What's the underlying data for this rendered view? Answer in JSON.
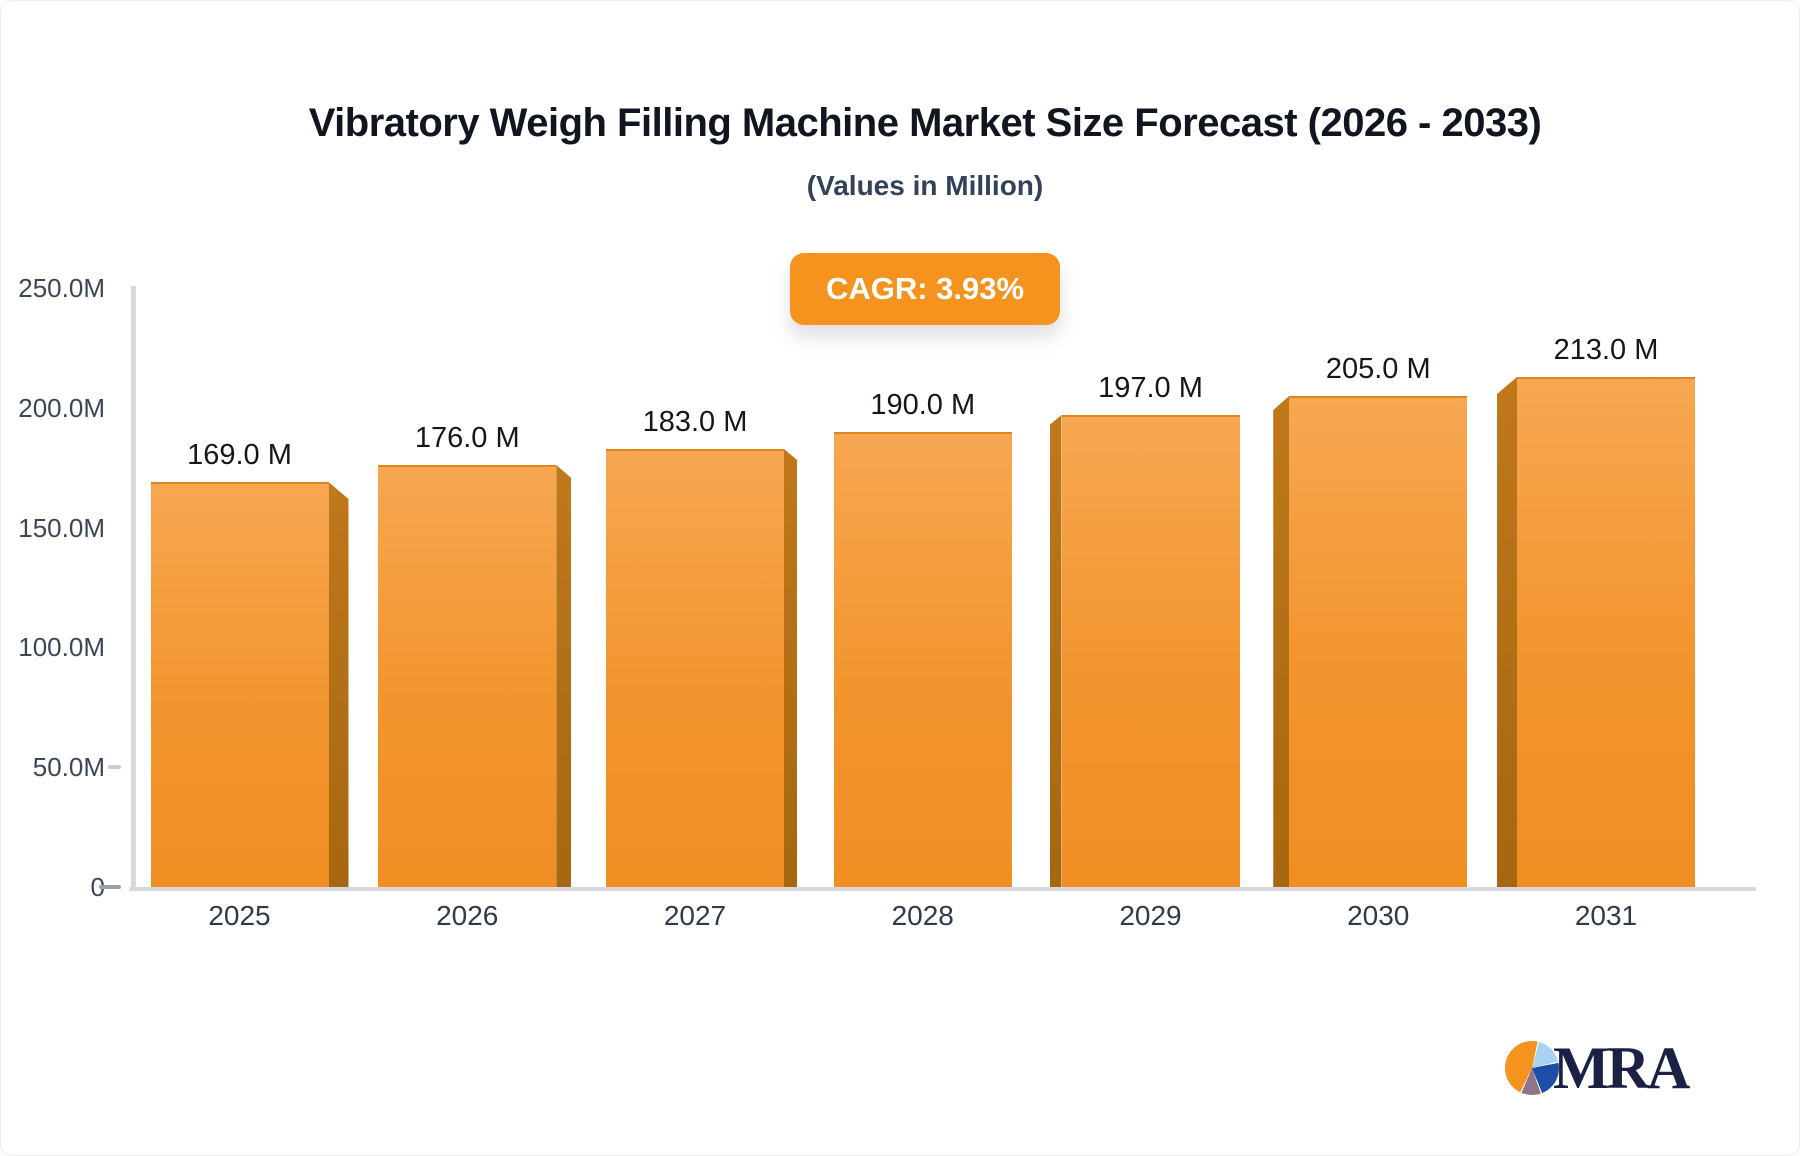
{
  "header": {
    "title": "Vibratory Weigh Filling Machine Market Size Forecast (2026 - 2033)",
    "subtitle": "(Values in Million)",
    "cagr_badge": "CAGR: 3.93%"
  },
  "chart_data": {
    "type": "bar",
    "title": "Vibratory Weigh Filling Machine Market Size Forecast (2026 - 2033)",
    "subtitle": "(Values in Million)",
    "categories": [
      "2025",
      "2026",
      "2027",
      "2028",
      "2029",
      "2030",
      "2031"
    ],
    "values": [
      169,
      176,
      183,
      190,
      197,
      205,
      213
    ],
    "value_labels": [
      "169.0 M",
      "176.0 M",
      "183.0 M",
      "190.0 M",
      "197.0 M",
      "205.0 M",
      "213.0 M"
    ],
    "series_name": "Market Size (Values in Million)",
    "y_tick_labels": [
      "250.0M",
      "200.0M",
      "150.0M",
      "100.0M",
      "50.0M",
      "0"
    ],
    "ylim": [
      0,
      250
    ],
    "xlabel": "",
    "ylabel": "",
    "grid": false,
    "legend": null,
    "annotation": "CAGR: 3.93%"
  },
  "colors": {
    "accent_orange": "#F6921E",
    "bar_front_top": "#F7A751",
    "bar_front_bottom": "#F08E23",
    "bar_side_dark": "#B06F15",
    "axis_line": "#D7D9DD",
    "title_text": "#10151F",
    "subtitle_text": "#33415A",
    "axis_text": "#3C4656"
  },
  "branding": {
    "logo_text": "MRA",
    "logo_icon": "pie-chart-icon"
  }
}
